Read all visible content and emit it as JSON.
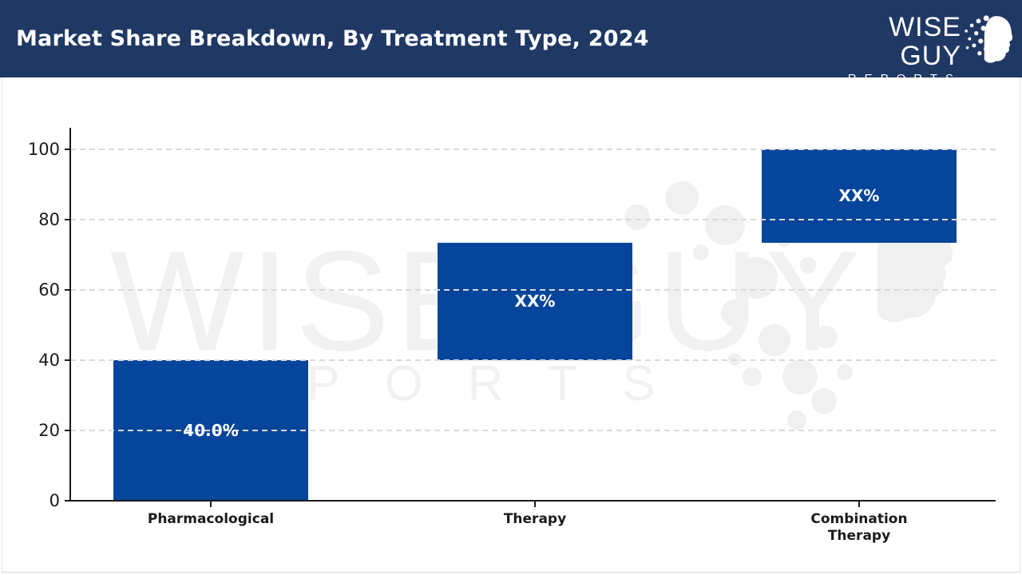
{
  "header": {
    "title": "Market Share Breakdown, By Treatment Type, 2024",
    "logo": {
      "line1": "WISE GUY",
      "line2": "REPORTS"
    }
  },
  "watermark": {
    "line1": "WISE GUY",
    "line2": "REPORTS"
  },
  "colors": {
    "header_bg": "#1F3864",
    "bar": "#05459C",
    "axis": "#1A1A1A",
    "grid": "#D9D9D9",
    "watermark": "#F1F1F1",
    "bar_label_text": "#FFFFFF"
  },
  "chart_data": {
    "type": "bar",
    "subtype": "waterfall",
    "title": "Market Share Breakdown, By Treatment Type, 2024",
    "xlabel": "",
    "ylabel": "",
    "ylim": [
      0,
      105
    ],
    "yticks": [
      0,
      20,
      40,
      60,
      80,
      100
    ],
    "grid": "dashed-horizontal",
    "legend": "none",
    "categories": [
      {
        "lines": [
          "Pharmacological"
        ]
      },
      {
        "lines": [
          "Therapy"
        ]
      },
      {
        "lines": [
          "Combination",
          "Therapy"
        ]
      }
    ],
    "bars": [
      {
        "label": "40.0%",
        "start": 0,
        "end": 40,
        "value_shown": "40.0%",
        "value_est": 40.0
      },
      {
        "label": "XX%",
        "start": 40,
        "end": 73.5,
        "value_shown": "XX%",
        "value_est": 33.5
      },
      {
        "label": "XX%",
        "start": 73.5,
        "end": 100,
        "value_shown": "XX%",
        "value_est": 26.5
      }
    ]
  }
}
